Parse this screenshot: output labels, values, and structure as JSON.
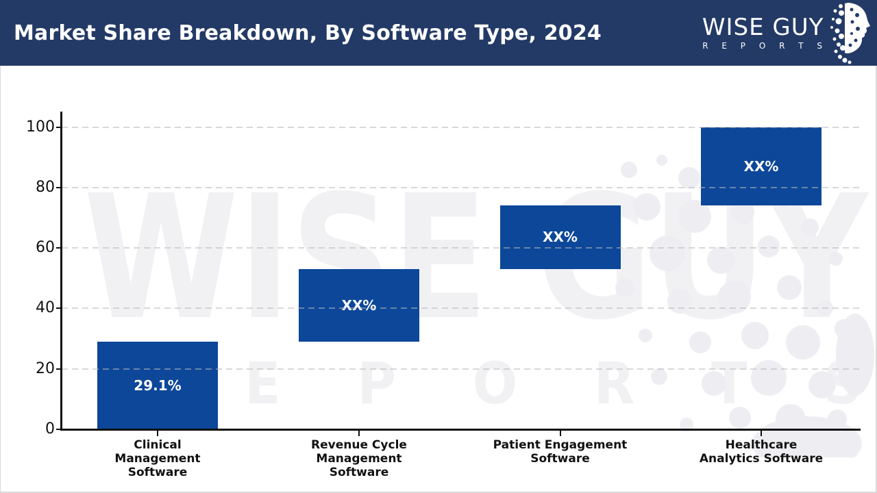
{
  "header": {
    "title": "Market Share Breakdown, By Software Type, 2024",
    "logo": {
      "line1": "WISE GUY",
      "line2": "R E P O R T S"
    }
  },
  "watermark": {
    "line1": "WISE GUY",
    "line2": "R E P O R T S"
  },
  "colors": {
    "header_bg": "#233a66",
    "bar_blue": "#0c4799",
    "bar_label_text": "#ffffff",
    "axis_text": "#111111",
    "watermark_gray": "#f1f1f4"
  },
  "chart_data": {
    "type": "bar",
    "subtype": "waterfall",
    "title": "Market Share Breakdown, By Software Type, 2024",
    "xlabel": "",
    "ylabel": "",
    "ylim": [
      0,
      105
    ],
    "yticks": [
      0,
      20,
      40,
      60,
      80,
      100
    ],
    "grid": "dashed horizontal, drawn over bars",
    "legend": "none",
    "bar_color": "#0c4799",
    "categories": [
      "Clinical Management Software",
      "Revenue Cycle Management Software",
      "Patient Engagement Software",
      "Healthcare Analytics Software"
    ],
    "label_lines": [
      [
        "Clinical",
        "Management",
        "Software"
      ],
      [
        "Revenue Cycle",
        "Management",
        "Software"
      ],
      [
        "Patient Engagement",
        "Software"
      ],
      [
        "Healthcare",
        "Analytics Software"
      ]
    ],
    "segments": [
      {
        "category": "Clinical Management Software",
        "start": 0,
        "end": 29.1,
        "label": "29.1%"
      },
      {
        "category": "Revenue Cycle Management Software",
        "start": 29.1,
        "end": 53.1,
        "label": "XX%"
      },
      {
        "category": "Patient Engagement Software",
        "start": 53.1,
        "end": 74.0,
        "label": "XX%"
      },
      {
        "category": "Healthcare Analytics Software",
        "start": 74.0,
        "end": 100,
        "label": "XX%"
      }
    ]
  }
}
